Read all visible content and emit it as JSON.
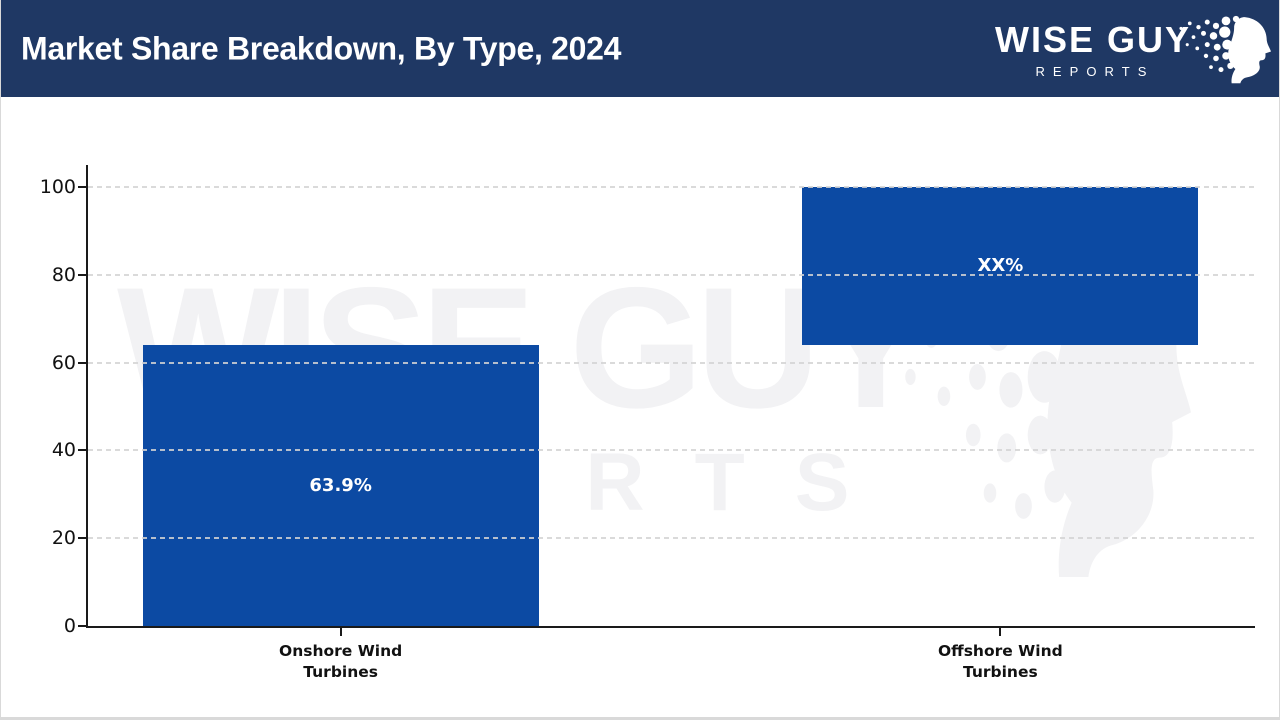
{
  "header": {
    "title": "Market Share Breakdown, By Type, 2024",
    "bg_color": "#1F3864",
    "brand": {
      "name": "WISE GUY",
      "sub": "REPORTS"
    }
  },
  "watermark": {
    "line1": "WISE GUY",
    "line2": "REPORTS",
    "color": "#F2F2F4"
  },
  "chart_data": {
    "type": "bar",
    "variant": "waterfall-market-share",
    "title": "Market Share Breakdown, By Type, 2024",
    "categories": [
      "Onshore Wind\nTurbines",
      "Offshore Wind\nTurbines"
    ],
    "bars": [
      {
        "category": "Onshore Wind Turbines",
        "from": 0,
        "to": 63.9,
        "label": "63.9%"
      },
      {
        "category": "Offshore Wind Turbines",
        "from": 63.9,
        "to": 100,
        "label": "XX%"
      }
    ],
    "values": [
      63.9,
      36.1
    ],
    "bar_color": "#0C4AA3",
    "bar_label_color": "#FFFFFF",
    "xlabel": "",
    "ylabel": "",
    "ylim": [
      0,
      105
    ],
    "yticks": [
      0,
      20,
      40,
      60,
      80,
      100
    ],
    "grid": {
      "axis": "y",
      "style": "dashed",
      "color": "#D9D9D9"
    },
    "legend": null
  }
}
